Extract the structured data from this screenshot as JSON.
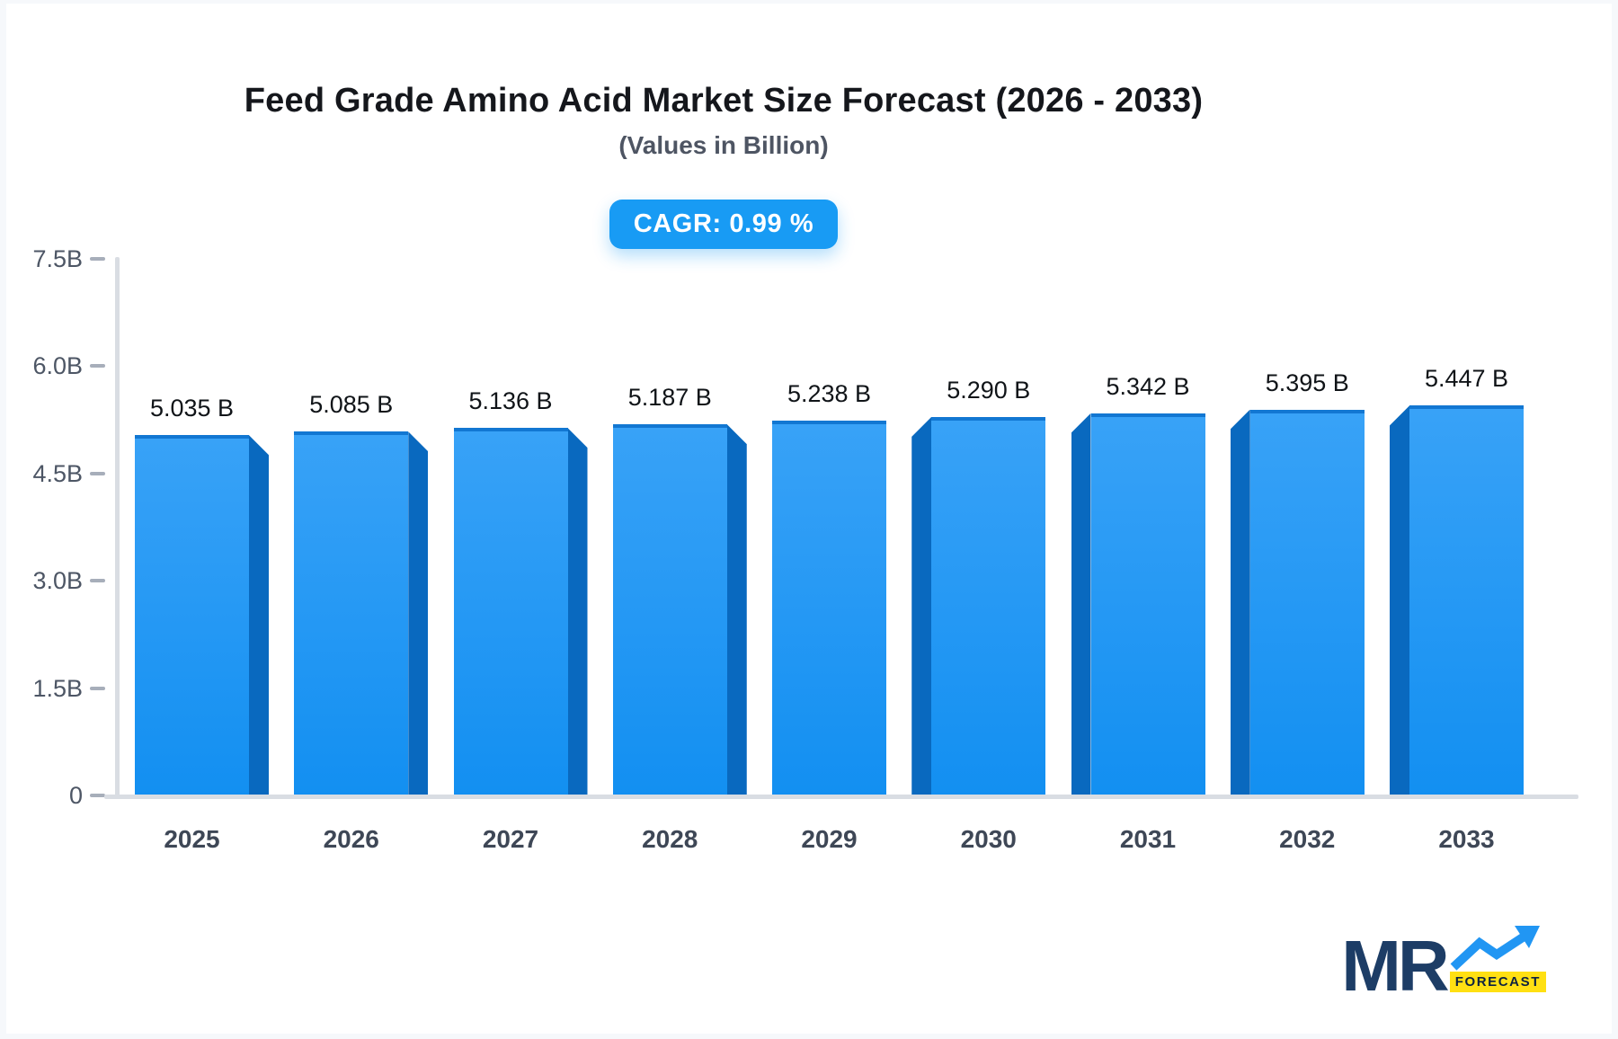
{
  "page": {
    "background": "#f6f8fb",
    "card_background": "#ffffff"
  },
  "header": {
    "title": "Feed Grade Amino Acid Market Size Forecast (2026 - 2033)",
    "subtitle": "(Values in Billion)",
    "cagr_badge": "CAGR: 0.99 %"
  },
  "chart_data": {
    "type": "bar",
    "title": "Feed Grade Amino Acid Market Size Forecast (2026 - 2033)",
    "subtitle": "(Values in Billion)",
    "unit": "Billion",
    "cagr_percent": 0.99,
    "categories": [
      "2025",
      "2026",
      "2027",
      "2028",
      "2029",
      "2030",
      "2031",
      "2032",
      "2033"
    ],
    "values": [
      5.035,
      5.085,
      5.136,
      5.187,
      5.238,
      5.29,
      5.342,
      5.395,
      5.447
    ],
    "value_labels": [
      "5.035 B",
      "5.085 B",
      "5.136 B",
      "5.187 B",
      "5.238 B",
      "5.290 B",
      "5.342 B",
      "5.395 B",
      "5.447 B"
    ],
    "ylim": [
      0,
      7.5
    ],
    "y_ticks": [
      {
        "value": 0,
        "label": "0"
      },
      {
        "value": 1.5,
        "label": "1.5B"
      },
      {
        "value": 3.0,
        "label": "3.0B"
      },
      {
        "value": 4.5,
        "label": "4.5B"
      },
      {
        "value": 6.0,
        "label": "6.0B"
      },
      {
        "value": 7.5,
        "label": "7.5B"
      }
    ],
    "grid": false,
    "legend": false,
    "bar_style": "3d-extruded-center-perspective",
    "colors": {
      "bar_face_top": "#38a2f7",
      "bar_face_bottom": "#128ff1",
      "bar_edge_top": "#1277d2",
      "bar_side": "#0969bf",
      "axis_line": "#d9dde3",
      "tick_dash": "#a7aeba",
      "tick_text": "#4d5665",
      "category_text": "#3e4756",
      "value_text": "#101418",
      "badge_bg": "#189bf4",
      "badge_text": "#ffffff"
    }
  },
  "logo": {
    "text": "MR",
    "forecast_label": "FORECAST",
    "trend_icon": "trend-up-arrow-icon",
    "colors": {
      "mr_text": "#1d3d66",
      "arrow": "#2196f3",
      "forecast_bg": "#ffe012",
      "forecast_text": "#0e2240"
    }
  }
}
